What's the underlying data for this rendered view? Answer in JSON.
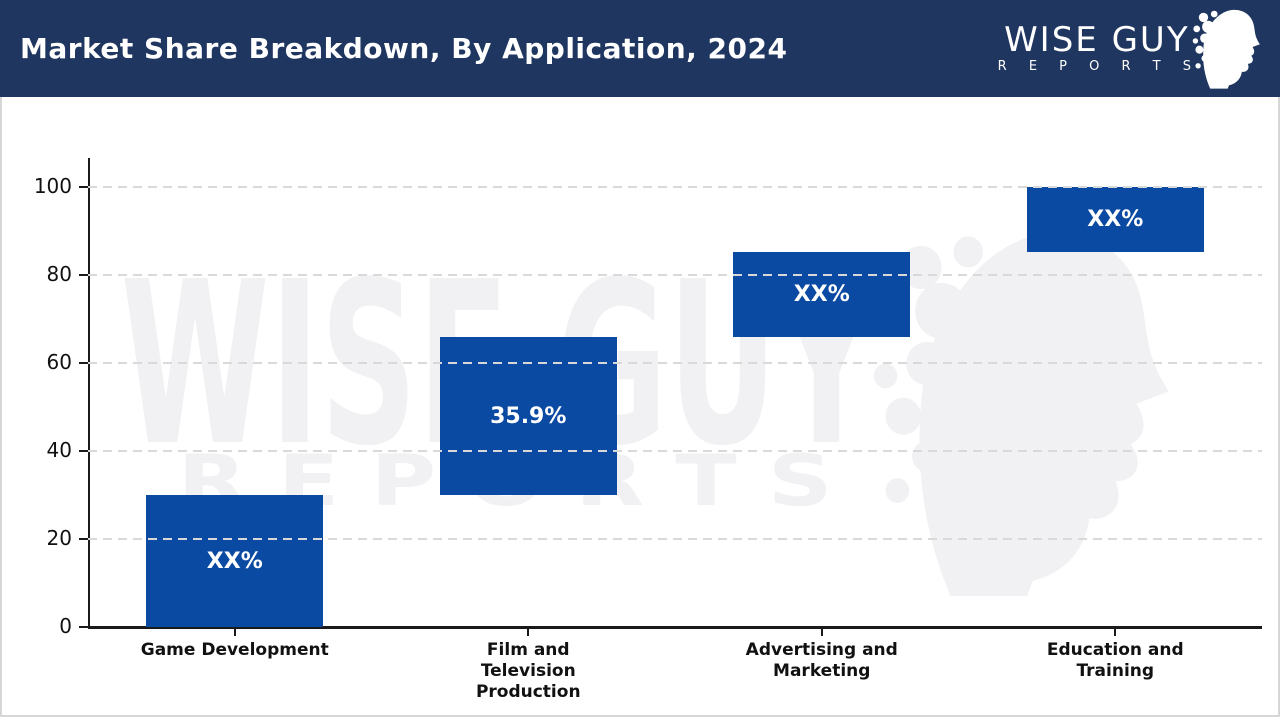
{
  "header": {
    "title": "Market Share Breakdown, By Application, 2024",
    "bg_color": "#1f3660",
    "logo": {
      "line1": "WISE GUY",
      "line2": "R E P O R T S"
    }
  },
  "watermark": {
    "line1": "WISE GUY",
    "line2": "R E P O R T S",
    "color": "#f1f1f4"
  },
  "chart_data": {
    "type": "bar",
    "variant": "waterfall",
    "title": "Market Share Breakdown, By Application, 2024",
    "categories": [
      "Game Development",
      "Film and Television Production",
      "Advertising and Marketing",
      "Education and Training"
    ],
    "categories_display": [
      [
        "Game Development"
      ],
      [
        "Film and",
        "Television",
        "Production"
      ],
      [
        "Advertising and",
        "Marketing"
      ],
      [
        "Education and",
        "Training"
      ]
    ],
    "series": [
      {
        "name": "Market share (%)",
        "segments": [
          {
            "category": "Game Development",
            "start": 0,
            "end": 30,
            "value_label": "XX%"
          },
          {
            "category": "Film and Television Production",
            "start": 30,
            "end": 65.9,
            "value": 35.9,
            "value_label": "35.9%"
          },
          {
            "category": "Advertising and Marketing",
            "start": 65.9,
            "end": 85.2,
            "value_label": "XX%"
          },
          {
            "category": "Education and Training",
            "start": 85.2,
            "end": 100,
            "value_label": "XX%"
          }
        ]
      }
    ],
    "yticks": [
      0,
      20,
      40,
      60,
      80,
      100
    ],
    "ylim": [
      0,
      105
    ],
    "xlabel": "",
    "ylabel": "",
    "grid": "horizontal-dashed",
    "legend_position": "none",
    "bar_color": "#0b4aa2",
    "bar_label_color": "#ffffff",
    "axis_color": "#1a1a1a",
    "gridline_color": "#d9d9d9"
  }
}
